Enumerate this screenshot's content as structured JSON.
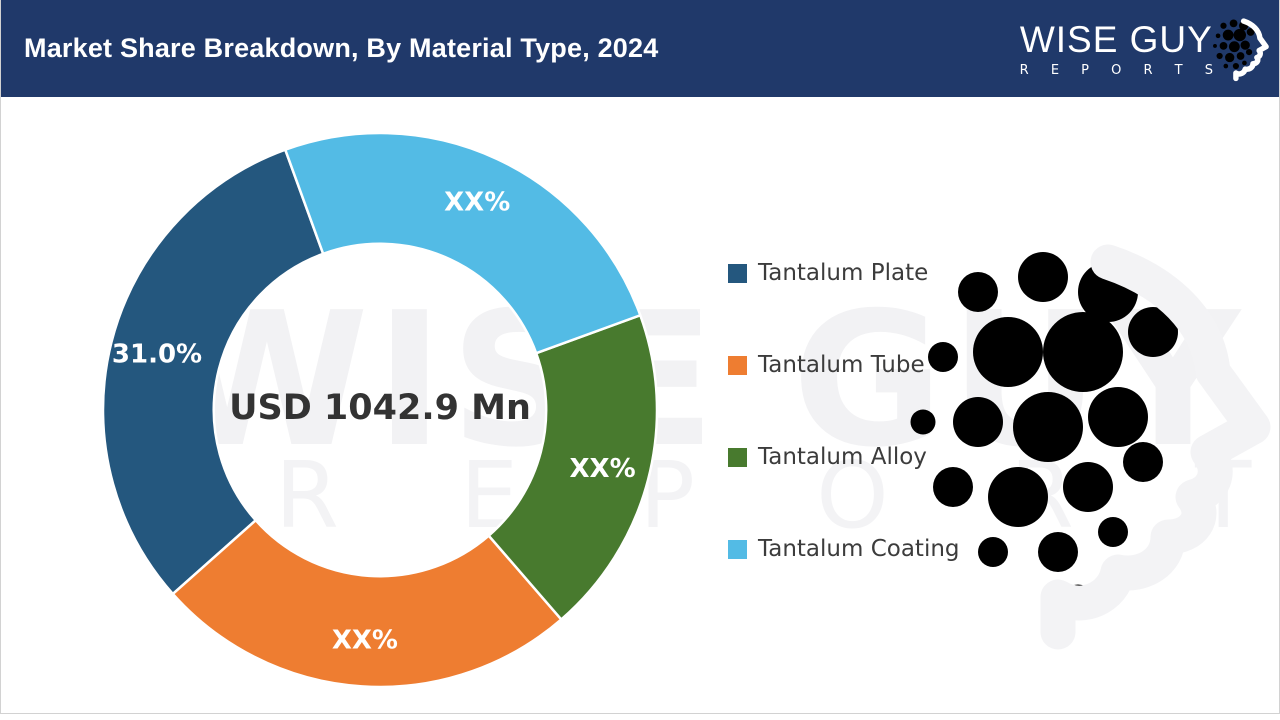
{
  "header": {
    "title": "Market Share Breakdown, By Material Type, 2024",
    "background_color": "#20396a",
    "logo": {
      "line1": "WISE GUY",
      "line2": "R E P O R T S"
    }
  },
  "chart_data": {
    "type": "pie",
    "subtype": "donut",
    "title": "Market Share Breakdown, By Material Type, 2024",
    "center_label": "USD 1042.9 Mn",
    "categories": [
      "Tantalum Plate",
      "Tantalum Tube",
      "Tantalum Alloy",
      "Tantalum Coating"
    ],
    "values": [
      31.0,
      24.8,
      19.2,
      25.0
    ],
    "slice_labels": [
      "31.0%",
      "XX%",
      "XX%",
      "XX%"
    ],
    "colors": [
      "#24577E",
      "#EE7D31",
      "#487A2E",
      "#53BBE5"
    ],
    "start_angle_deg": 110,
    "direction": "counterclockwise",
    "inner_radius_ratio": 0.6,
    "legend_position": "right",
    "slice_label_color": "#ffffff"
  },
  "watermark": {
    "line1": "WISE GUY",
    "line2": "R E P O R T S"
  }
}
